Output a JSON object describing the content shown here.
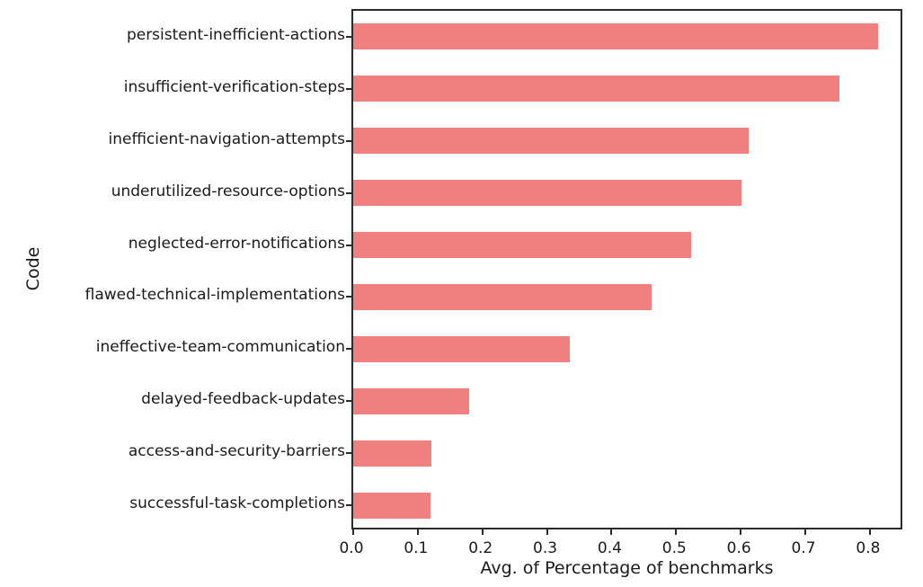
{
  "figure": {
    "background": "#ffffff"
  },
  "chart_data": {
    "type": "bar",
    "orientation": "horizontal",
    "title": "",
    "xlabel": "Avg. of Percentage of benchmarks",
    "ylabel": "Code",
    "categories": [
      "persistent-inefficient-actions",
      "insufficient-verification-steps",
      "inefficient-navigation-attempts",
      "underutilized-resource-options",
      "neglected-error-notifications",
      "flawed-technical-implementations",
      "ineffective-team-communication",
      "delayed-feedback-updates",
      "access-and-security-barriers",
      "successful-task-completions"
    ],
    "values": [
      0.812,
      0.753,
      0.612,
      0.601,
      0.523,
      0.462,
      0.336,
      0.18,
      0.121,
      0.119
    ],
    "xticks": [
      0.0,
      0.1,
      0.2,
      0.3,
      0.4,
      0.5,
      0.6,
      0.7,
      0.8
    ],
    "xtick_labels": [
      "0.0",
      "0.1",
      "0.2",
      "0.3",
      "0.4",
      "0.5",
      "0.6",
      "0.7",
      "0.8"
    ],
    "xlim": [
      0,
      0.853
    ],
    "grid": false,
    "legend": null,
    "bar_color": "#f08080",
    "spine_color": "#2b2b2b",
    "tick_color": "#2b2b2b",
    "text_color": "#1a1a1a"
  }
}
